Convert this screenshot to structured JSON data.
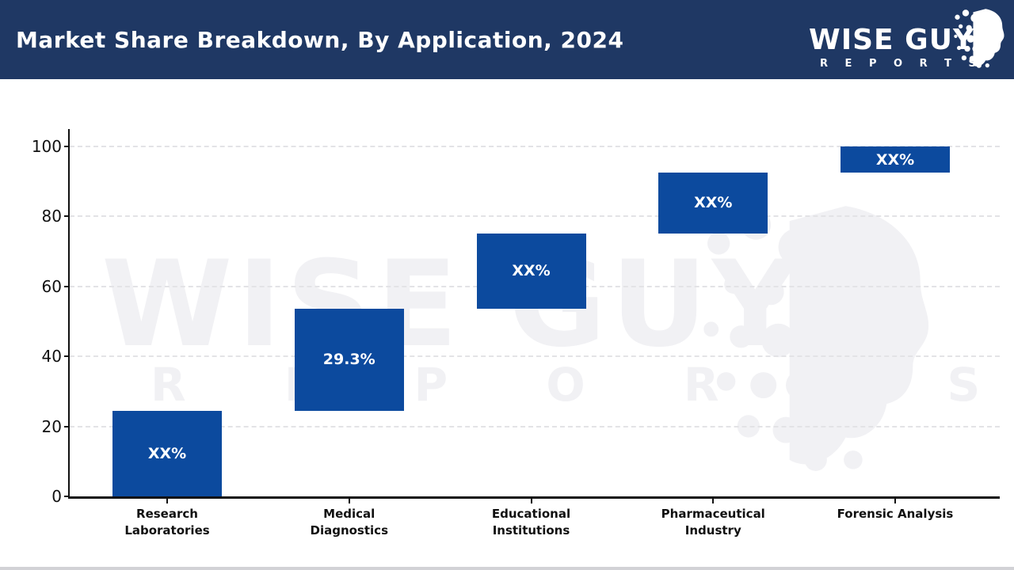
{
  "header": {
    "title": "Market Share Breakdown, By Application, 2024",
    "bg_color": "#1f3864",
    "text_color": "#ffffff",
    "logo": {
      "line1": "WISE GUY",
      "line2": "R E P O R T S"
    }
  },
  "watermark": {
    "line1": "WISE GUY",
    "line2": "R E P O R T S",
    "color": "#f1f1f4"
  },
  "chart_data": {
    "type": "bar",
    "subtype": "floating-waterfall",
    "title": "Market Share Breakdown, By Application, 2024",
    "categories": [
      "Research Laboratories",
      "Medical Diagnostics",
      "Educational Institutions",
      "Pharmaceutical Industry",
      "Forensic Analysis"
    ],
    "category_label_lines": [
      [
        "Research",
        "Laboratories"
      ],
      [
        "Medical",
        "Diagnostics"
      ],
      [
        "Educational",
        "Institutions"
      ],
      [
        "Pharmaceutical",
        "Industry"
      ],
      [
        "Forensic Analysis"
      ]
    ],
    "segments": [
      {
        "category": "Research Laboratories",
        "start": 0,
        "end": 24.4,
        "value": 24.4,
        "label": "XX%"
      },
      {
        "category": "Medical Diagnostics",
        "start": 24.4,
        "end": 53.7,
        "value": 29.3,
        "label": "29.3%"
      },
      {
        "category": "Educational Institutions",
        "start": 53.7,
        "end": 75.2,
        "value": 21.5,
        "label": "XX%"
      },
      {
        "category": "Pharmaceutical Industry",
        "start": 75.2,
        "end": 92.5,
        "value": 17.3,
        "label": "XX%"
      },
      {
        "category": "Forensic Analysis",
        "start": 92.5,
        "end": 100,
        "value": 7.5,
        "label": "XX%"
      }
    ],
    "y_ticks": [
      0,
      20,
      40,
      60,
      80,
      100
    ],
    "ylim": [
      0,
      105
    ],
    "grid": {
      "horizontal": true,
      "style": "dashed",
      "color": "#e3e3e6"
    },
    "legend": "none",
    "bar_color": "#0c4a9e",
    "bar_label_color": "#ffffff",
    "axis_color": "#111111",
    "tick_label_color": "#111111"
  }
}
